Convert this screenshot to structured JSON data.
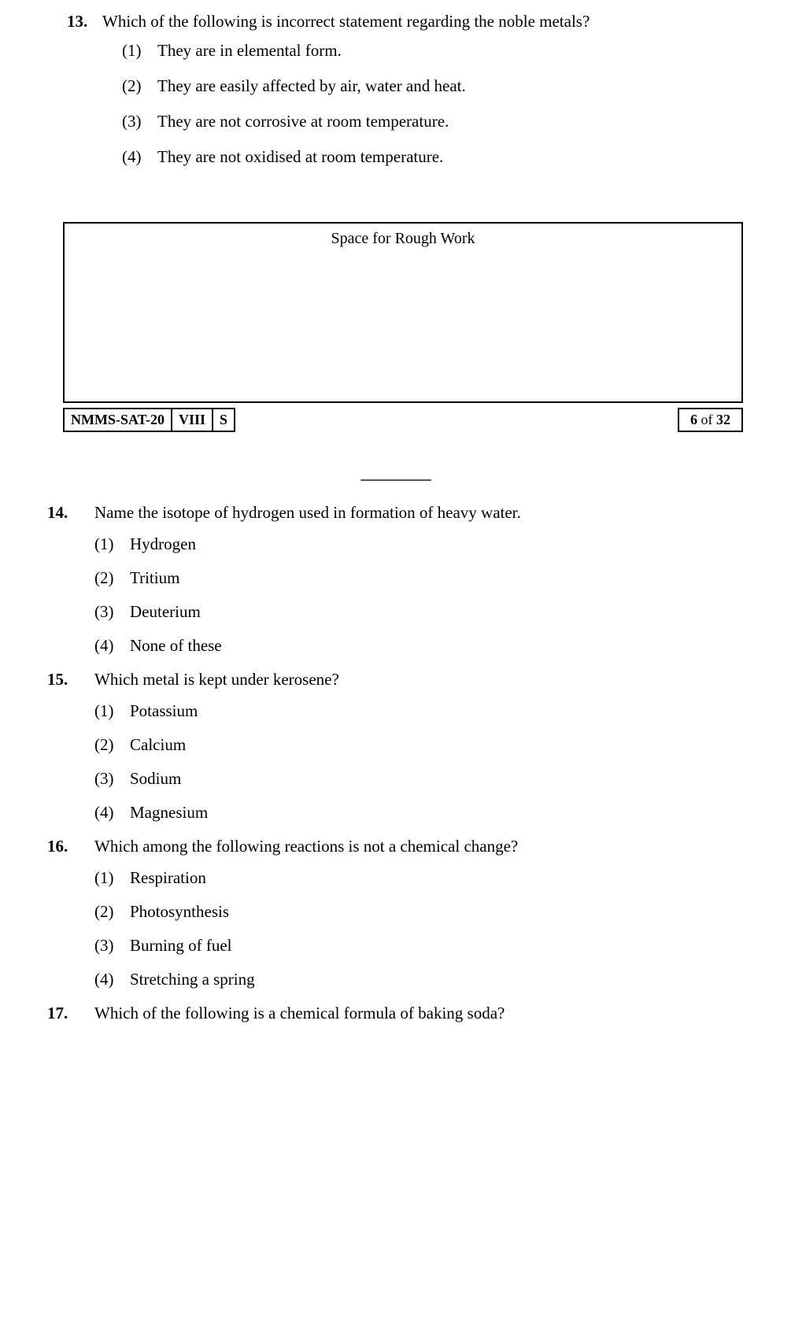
{
  "q13": {
    "number": "13.",
    "text": "Which of the following is incorrect statement regarding the noble metals?",
    "options": [
      {
        "n": "(1)",
        "t": "They are in elemental form."
      },
      {
        "n": "(2)",
        "t": "They are easily affected by air, water and heat."
      },
      {
        "n": "(3)",
        "t": "They are not corrosive at room temperature."
      },
      {
        "n": "(4)",
        "t": "They are not oxidised at room temperature."
      }
    ]
  },
  "rough_label": "Space for Rough Work",
  "footer": {
    "exam": "NMMS-SAT-20",
    "class": "VIII",
    "set": "S",
    "page_prefix": "6",
    "page_mid": " of ",
    "page_suffix": "32"
  },
  "q14": {
    "number": "14.",
    "text": "Name the isotope of hydrogen used in formation of heavy water.",
    "options": [
      {
        "n": "(1)",
        "t": "Hydrogen"
      },
      {
        "n": "(2)",
        "t": "Tritium"
      },
      {
        "n": "(3)",
        "t": "Deuterium"
      },
      {
        "n": "(4)",
        "t": "None of these"
      }
    ]
  },
  "q15": {
    "number": "15.",
    "text": "Which metal is kept under kerosene?",
    "options": [
      {
        "n": "(1)",
        "t": "Potassium"
      },
      {
        "n": "(2)",
        "t": "Calcium"
      },
      {
        "n": "(3)",
        "t": "Sodium"
      },
      {
        "n": "(4)",
        "t": "Magnesium"
      }
    ]
  },
  "q16": {
    "number": "16.",
    "text": "Which among the following reactions is not a chemical change?",
    "options": [
      {
        "n": "(1)",
        "t": "Respiration"
      },
      {
        "n": "(2)",
        "t": "Photosynthesis"
      },
      {
        "n": "(3)",
        "t": "Burning of fuel"
      },
      {
        "n": "(4)",
        "t": "Stretching a spring"
      }
    ]
  },
  "q17": {
    "number": "17.",
    "text": "Which of the following is a chemical formula of baking soda?"
  }
}
